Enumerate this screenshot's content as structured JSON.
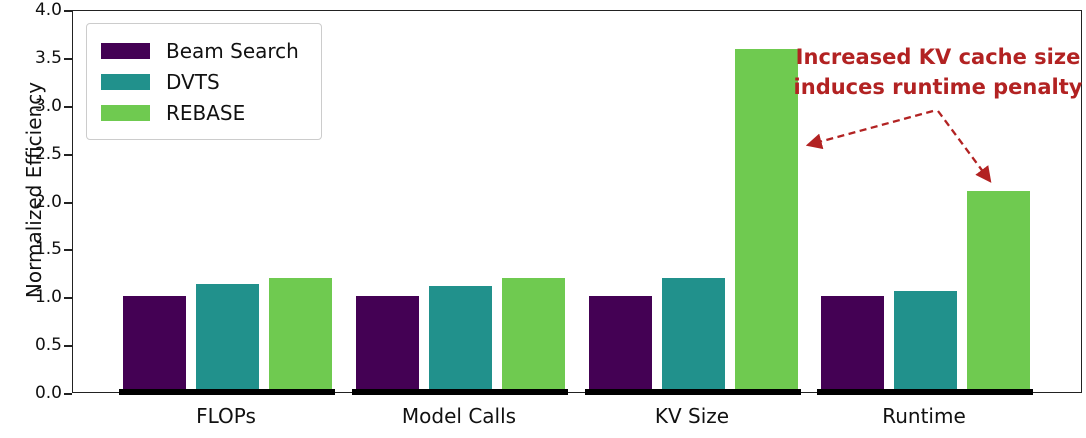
{
  "chart_data": {
    "type": "bar",
    "title": "",
    "xlabel": "",
    "ylabel": "Normalized Efficiency",
    "categories": [
      "FLOPs",
      "Model Calls",
      "KV Size",
      "Runtime"
    ],
    "series": [
      {
        "name": "Beam Search",
        "color": "#440154",
        "values": [
          1.0,
          1.0,
          1.0,
          1.0
        ]
      },
      {
        "name": "DVTS",
        "color": "#21918c",
        "values": [
          1.13,
          1.11,
          1.19,
          1.06
        ]
      },
      {
        "name": "REBASE",
        "color": "#6fca50",
        "values": [
          1.19,
          1.19,
          3.58,
          2.1
        ]
      }
    ],
    "ylim": [
      0.0,
      4.0
    ],
    "yticks": [
      "0.0",
      "0.5",
      "1.0",
      "1.5",
      "2.0",
      "2.5",
      "3.0",
      "3.5",
      "4.0"
    ],
    "grid": false,
    "legend_position": "upper-left",
    "annotation": {
      "line1": "Increased KV cache size",
      "line2": "induces runtime penalty",
      "color": "#b22222"
    },
    "axis_color": "#222222",
    "baseline_color": "#000000"
  }
}
